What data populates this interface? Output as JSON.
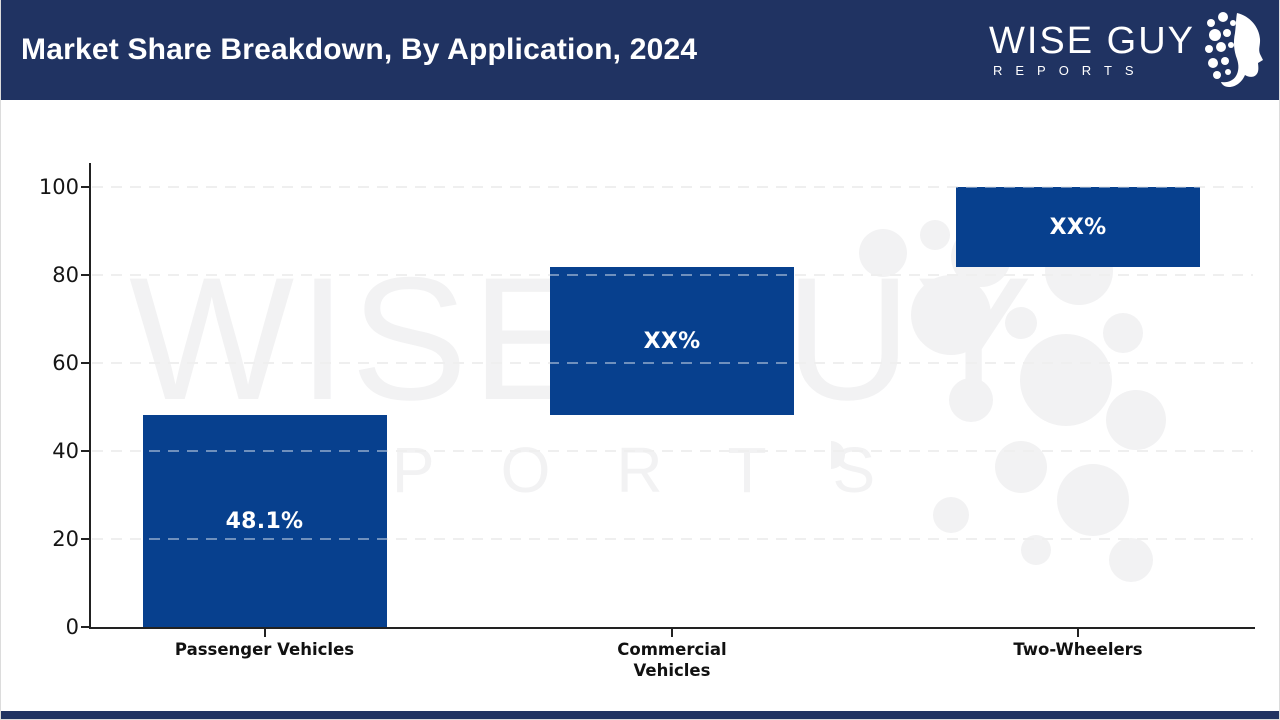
{
  "header": {
    "title": "Market Share Breakdown, By Application, 2024",
    "logo": {
      "line1": "WISE GUY",
      "line2": "REPORTS"
    }
  },
  "watermark": {
    "line1": "WISE GUY",
    "line2": "REPORTS"
  },
  "chart_data": {
    "type": "bar",
    "subtype": "floating-waterfall",
    "title": "Market Share Breakdown, By Application, 2024",
    "categories": [
      "Passenger Vehicles",
      "Commercial\nVehicles",
      "Two-Wheelers"
    ],
    "segments": [
      {
        "category": "Passenger Vehicles",
        "start": 0,
        "end": 48.1,
        "label": "48.1%"
      },
      {
        "category": "Commercial Vehicles",
        "start": 48.1,
        "end": 81.8,
        "label": "XX%"
      },
      {
        "category": "Two-Wheelers",
        "start": 81.8,
        "end": 100,
        "label": "XX%"
      }
    ],
    "yticks": [
      0,
      20,
      40,
      60,
      80,
      100
    ],
    "ylim": [
      0,
      105
    ],
    "xlabel": "",
    "ylabel": "",
    "grid": "horizontal-dashed",
    "legend": "none"
  },
  "colors": {
    "header_bg": "#203362",
    "bar": "#07408e",
    "title_text": "#ffffff",
    "axis_text": "#151515",
    "grid_line": "#e3e3e3",
    "watermark": "#f2f2f3",
    "bar_label": "#ffffff"
  }
}
